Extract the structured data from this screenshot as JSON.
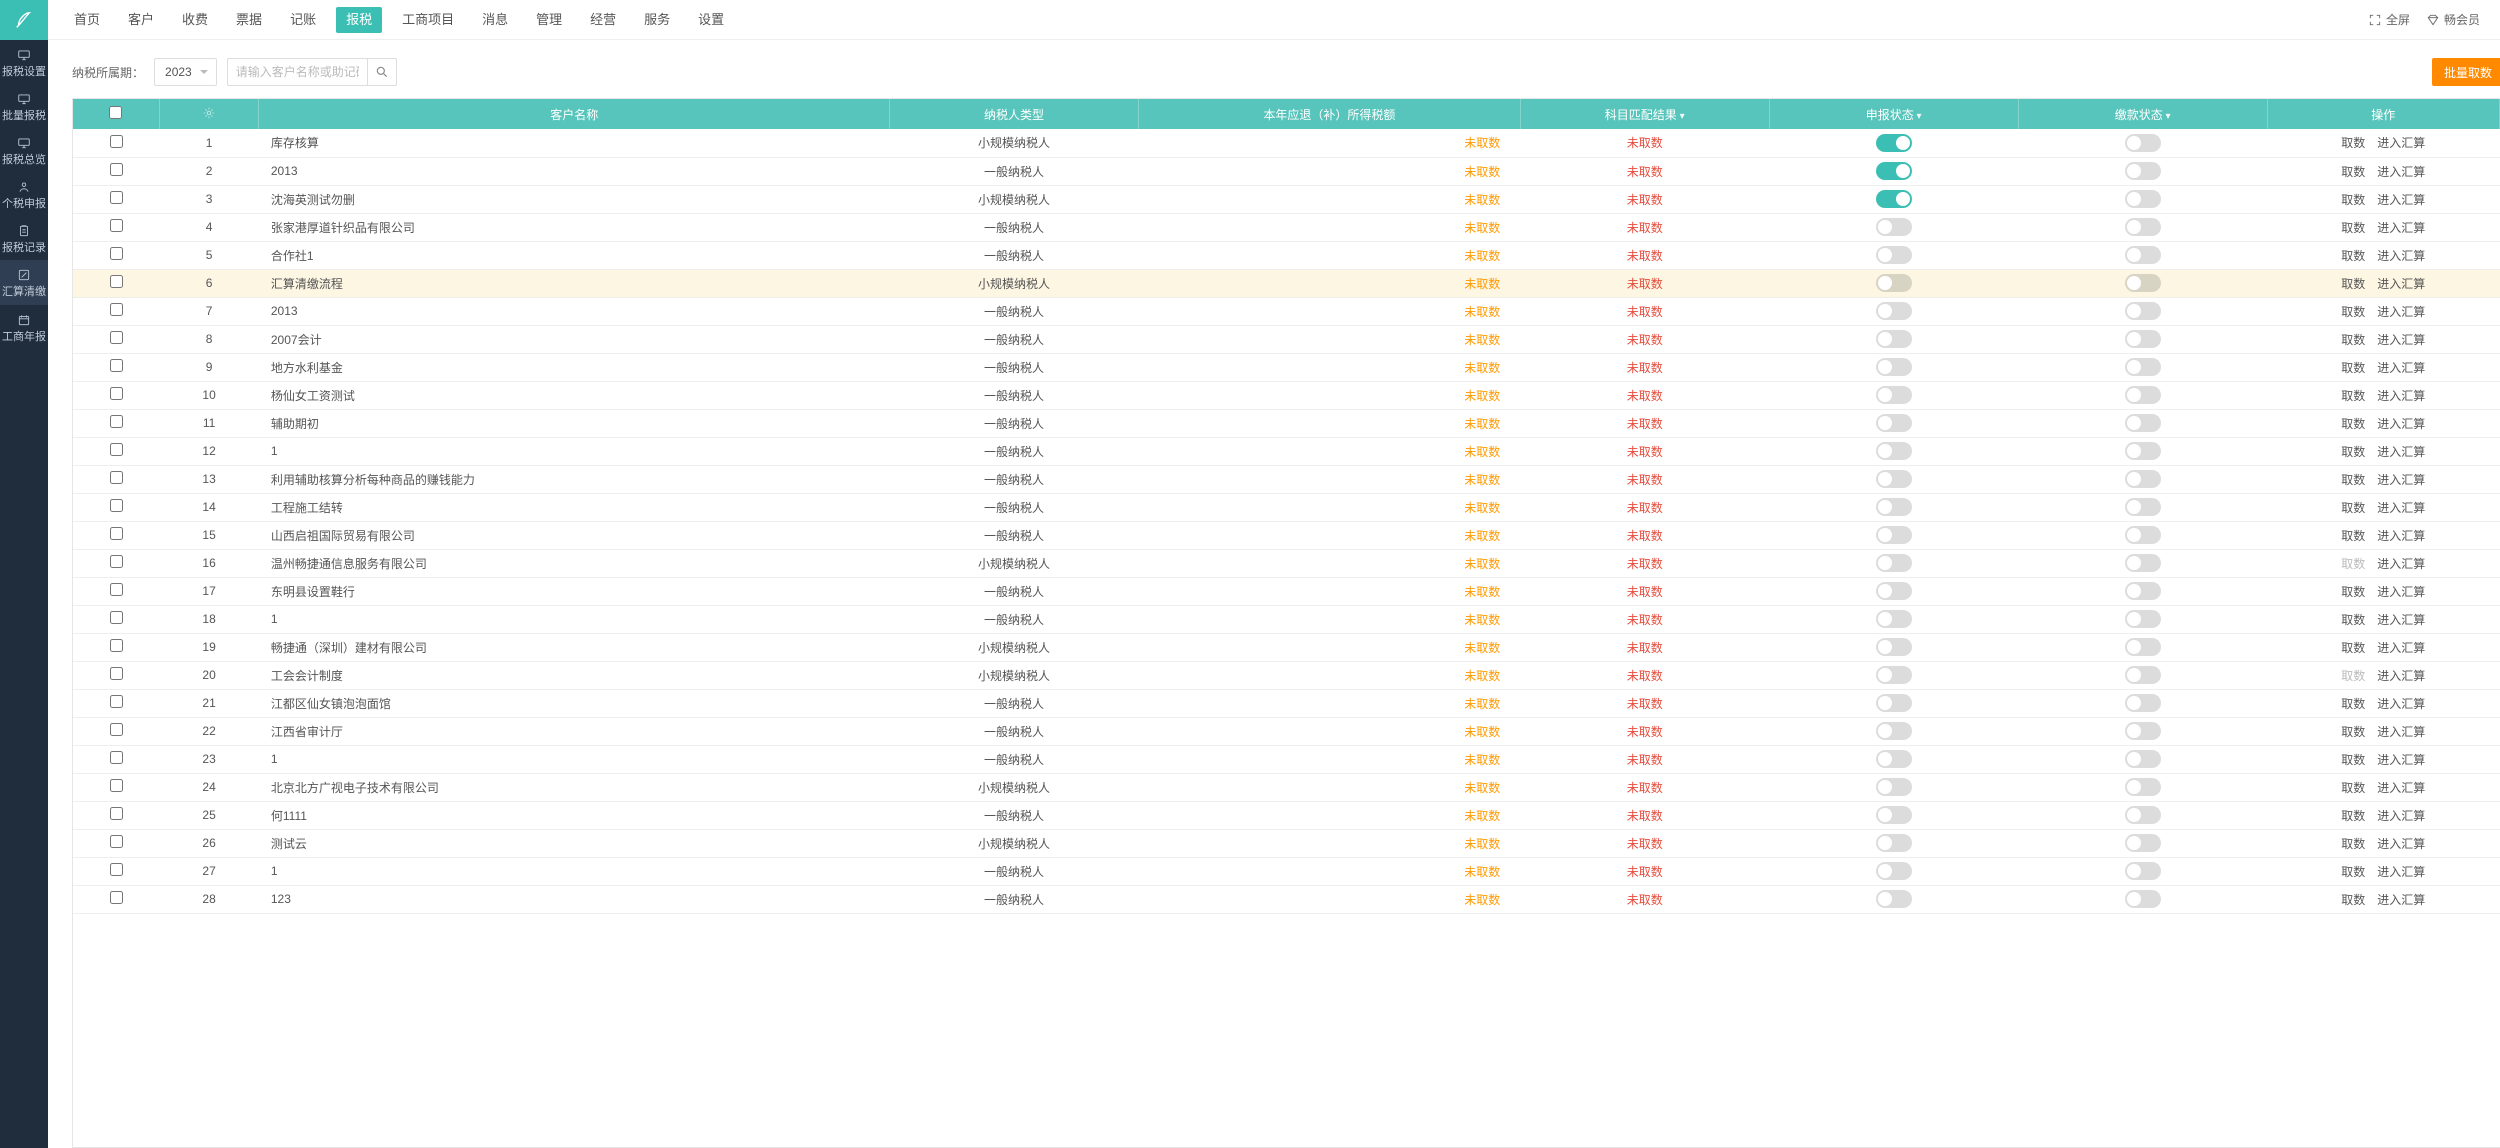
{
  "colors": {
    "accent": "#3bbfb4",
    "sidebar_bg": "#1f2d3d",
    "warn": "#ff9a00",
    "danger": "#e74c3c",
    "batch_btn": "#ff8a00",
    "highlight_row": "#fdf6e3"
  },
  "topnav": {
    "tabs": [
      "首页",
      "客户",
      "收费",
      "票据",
      "记账",
      "报税",
      "工商项目",
      "消息",
      "管理",
      "经营",
      "服务",
      "设置"
    ],
    "active_index": 5,
    "right": {
      "fullscreen": "全屏",
      "member": "畅会员"
    }
  },
  "sidebar": {
    "items": [
      {
        "label": "报税设置",
        "icon": "monitor"
      },
      {
        "label": "批量报税",
        "icon": "monitor"
      },
      {
        "label": "报税总览",
        "icon": "monitor"
      },
      {
        "label": "个税申报",
        "icon": "person"
      },
      {
        "label": "报税记录",
        "icon": "clipboard"
      },
      {
        "label": "汇算清缴",
        "icon": "percent"
      },
      {
        "label": "工商年报",
        "icon": "calendar"
      }
    ],
    "active_index": 5
  },
  "toolbar": {
    "period_label": "纳税所属期：",
    "year_value": "2023",
    "search_placeholder": "请输入客户名称或助记码",
    "batch_btn": "批量取数"
  },
  "table": {
    "headers": {
      "name": "客户名称",
      "type": "纳税人类型",
      "refund": "本年应退（补）所得税额",
      "match": "科目匹配结果",
      "decl_status": "申报状态",
      "pay_status": "缴款状态",
      "ops": "操作"
    },
    "op_labels": {
      "fetch": "取数",
      "enter": "进入汇算"
    },
    "rows": [
      {
        "idx": 1,
        "name": "库存核算",
        "type": "小规模纳税人",
        "refund": "未取数",
        "match": "未取数",
        "sw1": true,
        "sw2": false,
        "fetch_disabled": false
      },
      {
        "idx": 2,
        "name": "2013",
        "type": "一般纳税人",
        "refund": "未取数",
        "match": "未取数",
        "sw1": true,
        "sw2": false,
        "fetch_disabled": false
      },
      {
        "idx": 3,
        "name": "沈海英测试勿删",
        "type": "小规模纳税人",
        "refund": "未取数",
        "match": "未取数",
        "sw1": true,
        "sw2": false,
        "fetch_disabled": false
      },
      {
        "idx": 4,
        "name": "张家港厚道针织品有限公司",
        "type": "一般纳税人",
        "refund": "未取数",
        "match": "未取数",
        "sw1": false,
        "sw2": false,
        "fetch_disabled": false
      },
      {
        "idx": 5,
        "name": "合作社1",
        "type": "一般纳税人",
        "refund": "未取数",
        "match": "未取数",
        "sw1": false,
        "sw2": false,
        "fetch_disabled": false
      },
      {
        "idx": 6,
        "name": "汇算清缴流程",
        "type": "小规模纳税人",
        "refund": "未取数",
        "match": "未取数",
        "sw1": false,
        "sw2": false,
        "fetch_disabled": false,
        "highlight": true
      },
      {
        "idx": 7,
        "name": "2013",
        "type": "一般纳税人",
        "refund": "未取数",
        "match": "未取数",
        "sw1": false,
        "sw2": false,
        "fetch_disabled": false
      },
      {
        "idx": 8,
        "name": "2007会计",
        "type": "一般纳税人",
        "refund": "未取数",
        "match": "未取数",
        "sw1": false,
        "sw2": false,
        "fetch_disabled": false
      },
      {
        "idx": 9,
        "name": "地方水利基金",
        "type": "一般纳税人",
        "refund": "未取数",
        "match": "未取数",
        "sw1": false,
        "sw2": false,
        "fetch_disabled": false
      },
      {
        "idx": 10,
        "name": "杨仙女工资测试",
        "type": "一般纳税人",
        "refund": "未取数",
        "match": "未取数",
        "sw1": false,
        "sw2": false,
        "fetch_disabled": false
      },
      {
        "idx": 11,
        "name": "辅助期初",
        "type": "一般纳税人",
        "refund": "未取数",
        "match": "未取数",
        "sw1": false,
        "sw2": false,
        "fetch_disabled": false
      },
      {
        "idx": 12,
        "name": "1",
        "type": "一般纳税人",
        "refund": "未取数",
        "match": "未取数",
        "sw1": false,
        "sw2": false,
        "fetch_disabled": false
      },
      {
        "idx": 13,
        "name": "利用辅助核算分析每种商品的赚钱能力",
        "type": "一般纳税人",
        "refund": "未取数",
        "match": "未取数",
        "sw1": false,
        "sw2": false,
        "fetch_disabled": false
      },
      {
        "idx": 14,
        "name": "工程施工结转",
        "type": "一般纳税人",
        "refund": "未取数",
        "match": "未取数",
        "sw1": false,
        "sw2": false,
        "fetch_disabled": false
      },
      {
        "idx": 15,
        "name": "山西启祖国际贸易有限公司",
        "type": "一般纳税人",
        "refund": "未取数",
        "match": "未取数",
        "sw1": false,
        "sw2": false,
        "fetch_disabled": false
      },
      {
        "idx": 16,
        "name": "温州畅捷通信息服务有限公司",
        "type": "小规模纳税人",
        "refund": "未取数",
        "match": "未取数",
        "sw1": false,
        "sw2": false,
        "fetch_disabled": true
      },
      {
        "idx": 17,
        "name": "东明县设置鞋行",
        "type": "一般纳税人",
        "refund": "未取数",
        "match": "未取数",
        "sw1": false,
        "sw2": false,
        "fetch_disabled": false
      },
      {
        "idx": 18,
        "name": "1",
        "type": "一般纳税人",
        "refund": "未取数",
        "match": "未取数",
        "sw1": false,
        "sw2": false,
        "fetch_disabled": false
      },
      {
        "idx": 19,
        "name": "畅捷通（深圳）建材有限公司",
        "type": "小规模纳税人",
        "refund": "未取数",
        "match": "未取数",
        "sw1": false,
        "sw2": false,
        "fetch_disabled": false
      },
      {
        "idx": 20,
        "name": "工会会计制度",
        "type": "小规模纳税人",
        "refund": "未取数",
        "match": "未取数",
        "sw1": false,
        "sw2": false,
        "fetch_disabled": true
      },
      {
        "idx": 21,
        "name": "江都区仙女镇泡泡面馆",
        "type": "一般纳税人",
        "refund": "未取数",
        "match": "未取数",
        "sw1": false,
        "sw2": false,
        "fetch_disabled": false
      },
      {
        "idx": 22,
        "name": "江西省审计厅",
        "type": "一般纳税人",
        "refund": "未取数",
        "match": "未取数",
        "sw1": false,
        "sw2": false,
        "fetch_disabled": false
      },
      {
        "idx": 23,
        "name": "1",
        "type": "一般纳税人",
        "refund": "未取数",
        "match": "未取数",
        "sw1": false,
        "sw2": false,
        "fetch_disabled": false
      },
      {
        "idx": 24,
        "name": "北京北方广视电子技术有限公司",
        "type": "小规模纳税人",
        "refund": "未取数",
        "match": "未取数",
        "sw1": false,
        "sw2": false,
        "fetch_disabled": false
      },
      {
        "idx": 25,
        "name": "何1111",
        "type": "一般纳税人",
        "refund": "未取数",
        "match": "未取数",
        "sw1": false,
        "sw2": false,
        "fetch_disabled": false
      },
      {
        "idx": 26,
        "name": "测试云",
        "type": "小规模纳税人",
        "refund": "未取数",
        "match": "未取数",
        "sw1": false,
        "sw2": false,
        "fetch_disabled": false
      },
      {
        "idx": 27,
        "name": "1",
        "type": "一般纳税人",
        "refund": "未取数",
        "match": "未取数",
        "sw1": false,
        "sw2": false,
        "fetch_disabled": false
      },
      {
        "idx": 28,
        "name": "123",
        "type": "一般纳税人",
        "refund": "未取数",
        "match": "未取数",
        "sw1": false,
        "sw2": false,
        "fetch_disabled": false
      }
    ]
  }
}
